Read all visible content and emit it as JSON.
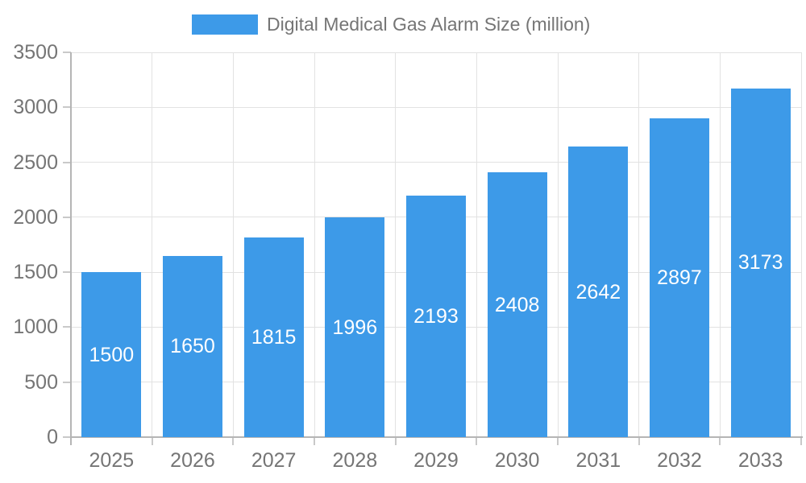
{
  "chart_data": {
    "type": "bar",
    "title": "Digital Medical Gas Alarm Size (million)",
    "legend_position": "top",
    "categories": [
      "2025",
      "2026",
      "2027",
      "2028",
      "2029",
      "2030",
      "2031",
      "2032",
      "2033"
    ],
    "values": [
      1500,
      1650,
      1815,
      1996,
      2193,
      2408,
      2642,
      2897,
      3173
    ],
    "value_labels": [
      "1500",
      "1650",
      "1815",
      "1996",
      "2193",
      "2408",
      "2642",
      "2897",
      "3173"
    ],
    "xlabel": "",
    "ylabel": "",
    "ylim": [
      0,
      3500
    ],
    "ytick_step": 500,
    "yticks": [
      0,
      500,
      1000,
      1500,
      2000,
      2500,
      3000,
      3500
    ],
    "grid": true,
    "colors": {
      "bar": "#3d9ae8",
      "value_label": "#ffffff",
      "axis_label": "#757575",
      "legend_text": "#757575",
      "gridline": "#e2e2e2",
      "tick": "#c9c9c9",
      "axis_line": "#b5b5b5",
      "background": "#ffffff"
    }
  }
}
